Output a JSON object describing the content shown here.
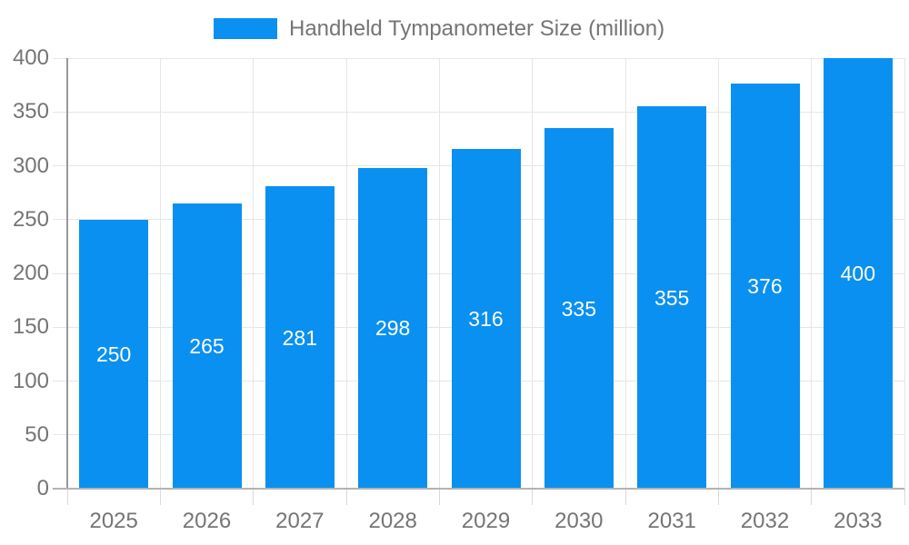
{
  "chart_data": {
    "type": "bar",
    "title": "Handheld Tympanometer Size (million)",
    "categories": [
      "2025",
      "2026",
      "2027",
      "2028",
      "2029",
      "2030",
      "2031",
      "2032",
      "2033"
    ],
    "values": [
      250,
      265,
      281,
      298,
      316,
      335,
      355,
      376,
      400
    ],
    "xlabel": "",
    "ylabel": "",
    "ylim": [
      0,
      400
    ],
    "y_ticks": [
      0,
      50,
      100,
      150,
      200,
      250,
      300,
      350,
      400
    ],
    "grid": "on",
    "legend_position": "top-center",
    "bar_value_labels": "inside-center"
  },
  "colors": {
    "bar": "#0a90f0",
    "bar_label": "#ffffff",
    "axis_text": "#757575",
    "legend_text": "#757575",
    "grid_line": "#e6e6e6",
    "y_axis_line": "#999999",
    "x_axis_line": "#b3b3b3",
    "tick_line": "#d9d9d9",
    "background": "#ffffff"
  }
}
